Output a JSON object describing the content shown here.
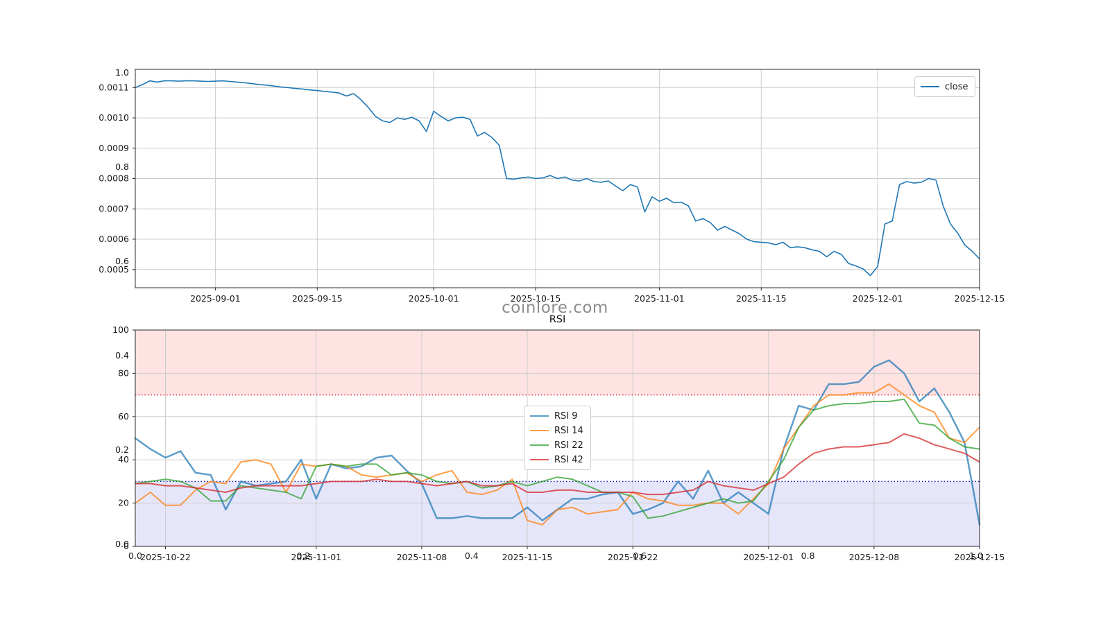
{
  "watermark": {
    "text": "coinlore.com"
  },
  "secondary_axis_labels": {
    "y": [
      "1.0",
      "0.8",
      "0.6",
      "0.4",
      "0.2",
      "0.0"
    ],
    "x": [
      "0.0",
      "0.2",
      "0.4",
      "0.6",
      "0.8",
      "1.0"
    ]
  },
  "chart_data": [
    {
      "type": "line",
      "title": "",
      "xlabel": "",
      "ylabel": "",
      "grid": true,
      "legend_position": "top-right",
      "ylim": [
        0.00044,
        0.00116
      ],
      "y_ticks": [
        {
          "v": 0.0005,
          "label": "0.0005"
        },
        {
          "v": 0.0006,
          "label": "0.0006"
        },
        {
          "v": 0.0007,
          "label": "0.0007"
        },
        {
          "v": 0.0008,
          "label": "0.0008"
        },
        {
          "v": 0.0009,
          "label": "0.0009"
        },
        {
          "v": 0.001,
          "label": "0.0010"
        },
        {
          "v": 0.0011,
          "label": "0.0011"
        }
      ],
      "x_ticks": [
        {
          "i": 11,
          "label": "2025-09-01"
        },
        {
          "i": 25,
          "label": "2025-09-15"
        },
        {
          "i": 41,
          "label": "2025-10-01"
        },
        {
          "i": 55,
          "label": "2025-10-15"
        },
        {
          "i": 72,
          "label": "2025-11-01"
        },
        {
          "i": 86,
          "label": "2025-11-15"
        },
        {
          "i": 102,
          "label": "2025-12-01"
        },
        {
          "i": 116,
          "label": "2025-12-15"
        }
      ],
      "series": [
        {
          "name": "close",
          "color": "#1f77b4",
          "width": 1.6,
          "opacity": 1,
          "start_date": "2025-08-21",
          "values": [
            0.0011,
            0.00111,
            0.001122,
            0.001118,
            0.001122,
            0.001122,
            0.001121,
            0.001122,
            0.001122,
            0.001121,
            0.00112,
            0.001121,
            0.001122,
            0.00112,
            0.001118,
            0.001116,
            0.001113,
            0.00111,
            0.001108,
            0.001105,
            0.001102,
            0.0011,
            0.001097,
            0.001095,
            0.001092,
            0.00109,
            0.001087,
            0.001085,
            0.001082,
            0.001072,
            0.00108,
            0.00106,
            0.001035,
            0.001005,
            0.00099,
            0.000985,
            0.001,
            0.000995,
            0.001002,
            0.00099,
            0.000955,
            0.001022,
            0.001005,
            0.00099,
            0.001,
            0.001002,
            0.000995,
            0.00094,
            0.000952,
            0.000935,
            0.00091,
            0.0008,
            0.000798,
            0.000802,
            0.000805,
            0.0008,
            0.000802,
            0.00081,
            0.0008,
            0.000805,
            0.000795,
            0.000792,
            0.0008,
            0.00079,
            0.000788,
            0.000792,
            0.000775,
            0.00076,
            0.00078,
            0.000772,
            0.00069,
            0.00074,
            0.000725,
            0.000735,
            0.00072,
            0.000722,
            0.00071,
            0.00066,
            0.000668,
            0.000655,
            0.00063,
            0.000642,
            0.00063,
            0.000618,
            0.0006,
            0.000592,
            0.00059,
            0.000588,
            0.000582,
            0.00059,
            0.000572,
            0.000575,
            0.000572,
            0.000565,
            0.00056,
            0.000542,
            0.00056,
            0.00055,
            0.00052,
            0.000512,
            0.000502,
            0.00048,
            0.00051,
            0.00065,
            0.00066,
            0.00078,
            0.00079,
            0.000785,
            0.000788,
            0.0008,
            0.000795,
            0.00071,
            0.00065,
            0.00062,
            0.00058,
            0.00056,
            0.000535
          ]
        }
      ]
    },
    {
      "type": "line",
      "title": "RSI",
      "xlabel": "",
      "ylabel": "",
      "grid": true,
      "legend_position": "center",
      "ylim": [
        0,
        100
      ],
      "y_ticks": [
        {
          "v": 0,
          "label": "0"
        },
        {
          "v": 20,
          "label": "20"
        },
        {
          "v": 40,
          "label": "40"
        },
        {
          "v": 60,
          "label": "60"
        },
        {
          "v": 80,
          "label": "80"
        },
        {
          "v": 100,
          "label": "100"
        }
      ],
      "x_ticks": [
        {
          "i": 2,
          "label": "2025-10-22"
        },
        {
          "i": 12,
          "label": "2025-11-01"
        },
        {
          "i": 19,
          "label": "2025-11-08"
        },
        {
          "i": 26,
          "label": "2025-11-15"
        },
        {
          "i": 33,
          "label": "2025-11-22"
        },
        {
          "i": 42,
          "label": "2025-12-01"
        },
        {
          "i": 49,
          "label": "2025-12-08"
        },
        {
          "i": 56,
          "label": "2025-12-15"
        }
      ],
      "bands": [
        {
          "name": "overbought-band",
          "from": 70,
          "to": 100,
          "color": "rgba(255,42,42,0.13)"
        },
        {
          "name": "oversold-band",
          "from": 0,
          "to": 30,
          "color": "rgba(88,88,228,0.15)"
        }
      ],
      "hlines": [
        {
          "name": "overbought-threshold",
          "value": 70,
          "color": "#d62728"
        },
        {
          "name": "oversold-threshold",
          "value": 30,
          "color": "#1a1ab8"
        }
      ],
      "series": [
        {
          "name": "RSI 9",
          "color": "#1f77b4",
          "width": 2.5,
          "opacity": 0.72,
          "start_date": "2025-10-20",
          "values": [
            50,
            45,
            41,
            44,
            34,
            33,
            17,
            30,
            28,
            29,
            30,
            40,
            22,
            38,
            36,
            37,
            41,
            42,
            35,
            29,
            13,
            13,
            14,
            13,
            13,
            13,
            18,
            12,
            17,
            22,
            22,
            24,
            25,
            15,
            17,
            20,
            30,
            22,
            35,
            20,
            25,
            20,
            15,
            45,
            65,
            63,
            75,
            75,
            76,
            83,
            86,
            80,
            67,
            73,
            62,
            48,
            10
          ]
        },
        {
          "name": "RSI 14",
          "color": "#ff7f0e",
          "width": 2,
          "opacity": 0.75,
          "start_date": "2025-10-20",
          "values": [
            20,
            25,
            19,
            19,
            26,
            30,
            29,
            39,
            40,
            38,
            25,
            38,
            37,
            38,
            37,
            33,
            32,
            33,
            34,
            30,
            33,
            35,
            25,
            24,
            26,
            31,
            12,
            10,
            17,
            18,
            15,
            16,
            17,
            25,
            22,
            21,
            19,
            19,
            20,
            20,
            15,
            22,
            29,
            45,
            55,
            65,
            70,
            70,
            71,
            71,
            75,
            70,
            65,
            62,
            50,
            48,
            55
          ]
        },
        {
          "name": "RSI 22",
          "color": "#2ca02c",
          "width": 2,
          "opacity": 0.75,
          "start_date": "2025-10-20",
          "values": [
            29,
            30,
            31,
            30,
            27,
            21,
            21,
            28,
            27,
            26,
            25,
            22,
            37,
            38,
            37,
            38,
            38,
            33,
            34,
            33,
            30,
            29,
            30,
            27,
            28,
            30,
            28,
            30,
            32,
            31,
            28,
            25,
            25,
            23,
            13,
            14,
            16,
            18,
            20,
            22,
            20,
            21,
            30,
            40,
            55,
            63,
            65,
            66,
            66,
            67,
            67,
            68,
            57,
            56,
            50,
            46,
            45
          ]
        },
        {
          "name": "RSI 42",
          "color": "#d62728",
          "width": 2,
          "opacity": 0.75,
          "start_date": "2025-10-20",
          "values": [
            29,
            29,
            28,
            28,
            27,
            26,
            25,
            27,
            28,
            28,
            28,
            28,
            29,
            30,
            30,
            30,
            31,
            30,
            30,
            29,
            28,
            29,
            30,
            28,
            28,
            29,
            25,
            25,
            26,
            26,
            25,
            25,
            25,
            25,
            24,
            24,
            25,
            26,
            30,
            28,
            27,
            26,
            29,
            32,
            38,
            43,
            45,
            46,
            46,
            47,
            48,
            52,
            50,
            47,
            45,
            43,
            39
          ]
        }
      ]
    }
  ]
}
